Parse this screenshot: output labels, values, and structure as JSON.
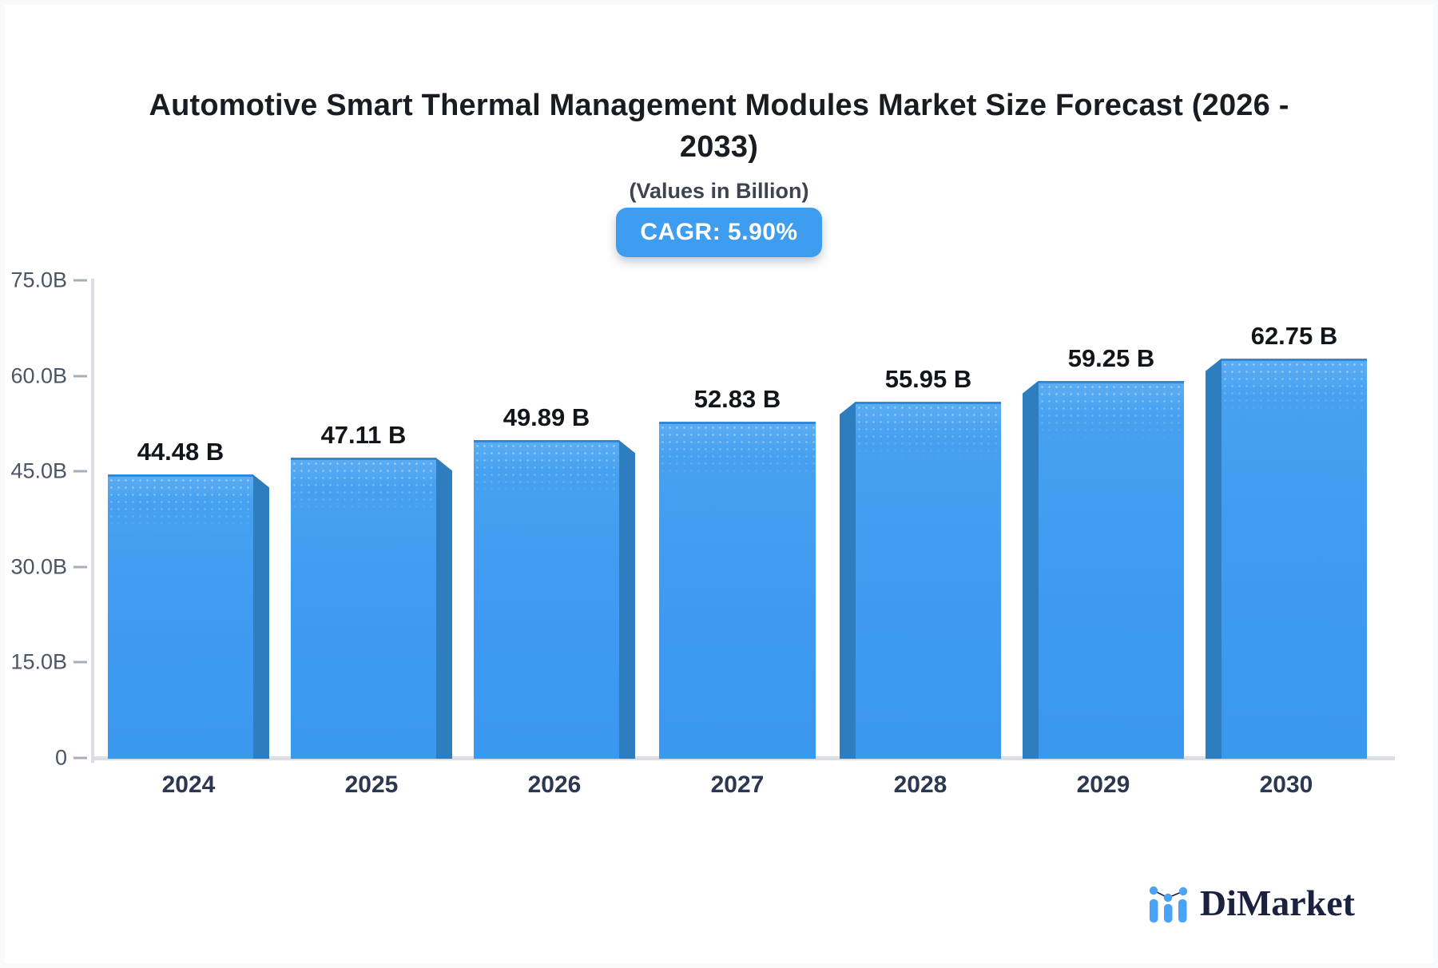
{
  "header": {
    "title_line1": "Automotive Smart Thermal Management Modules Market Size Forecast (2026 -",
    "title_line2": "2033)",
    "subtitle": "(Values in Billion)",
    "cagr_badge": "CAGR: 5.90%"
  },
  "chart_data": {
    "type": "bar",
    "title": "Automotive Smart Thermal Management Modules Market Size Forecast (2026 - 2033)",
    "subtitle": "(Values in Billion)",
    "cagr_label": "CAGR: 5.90%",
    "categories": [
      "2024",
      "2025",
      "2026",
      "2027",
      "2028",
      "2029",
      "2030"
    ],
    "values": [
      44.48,
      47.11,
      49.89,
      52.83,
      55.95,
      59.25,
      62.75
    ],
    "value_labels": [
      "44.48 B",
      "47.11 B",
      "49.89 B",
      "52.83 B",
      "55.95 B",
      "59.25 B",
      "62.75 B"
    ],
    "ytick_values": [
      75,
      60,
      45,
      30,
      15,
      0
    ],
    "ytick_labels": [
      "75.0B",
      "60.0B",
      "45.0B",
      "30.0B",
      "15.0B",
      "0"
    ],
    "ylim": [
      0,
      75
    ],
    "xlabel": "",
    "ylabel": "",
    "grid": false,
    "legend_position": "none",
    "bar_style": "3d-beveled",
    "colors": {
      "bar_face": "#3d9af0",
      "bar_face_light": "#5cadf2",
      "bar_side": "#2e7dbf",
      "bar_top_edge": "#3187d8",
      "badge_bg": "#3f9df0",
      "badge_text": "#ffffff",
      "axis": "#dbdee3",
      "tick": "#a7aeb8",
      "y_label": "#4b5563",
      "x_label": "#2c3850",
      "value_label": "#121519"
    }
  },
  "logo": {
    "icon": "bar-line-chart-icon",
    "text": "DiMarket",
    "icon_color": "#4aa3f7",
    "text_color": "#1a2240"
  }
}
